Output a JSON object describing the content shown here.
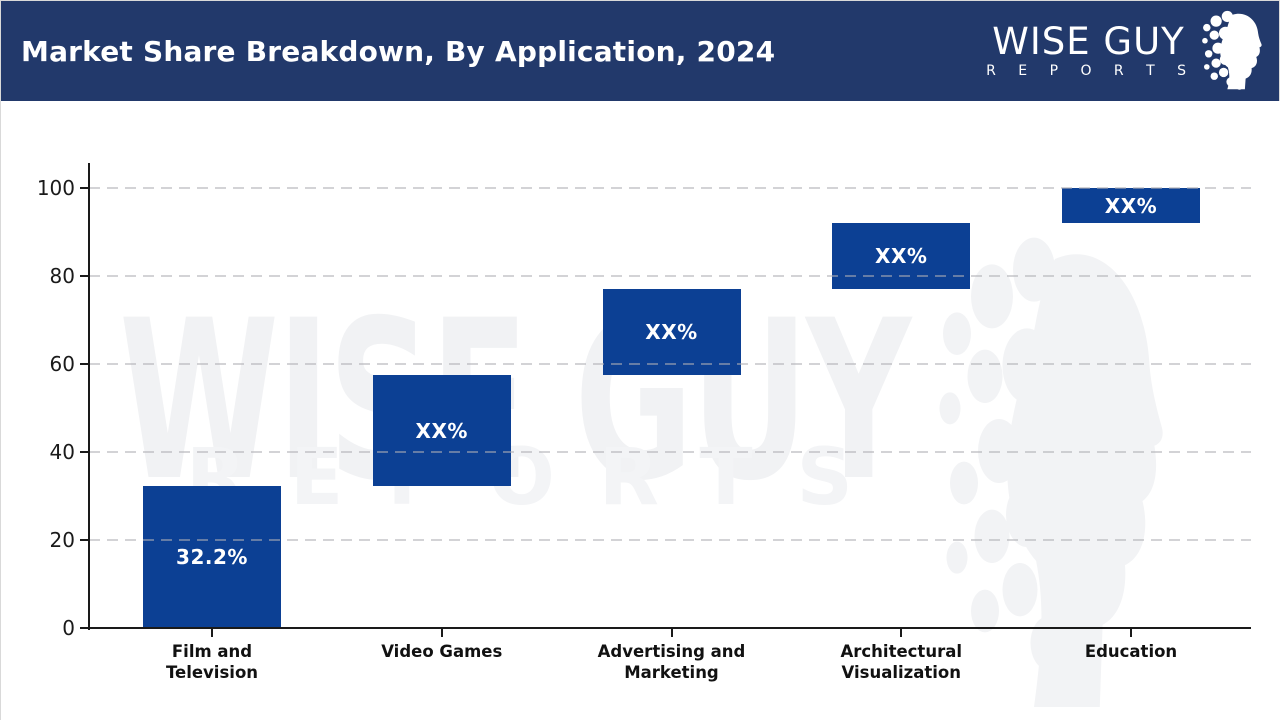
{
  "header": {
    "title": "Market Share Breakdown, By Application, 2024",
    "logo_line1": "WISE GUY",
    "logo_line2": "R E P O R T S",
    "bg_color": "#22396b"
  },
  "watermark": {
    "line1": "WISE GUY",
    "line2": "REPORTS"
  },
  "icons": {
    "logo_head": "dotted-head-profile-icon"
  },
  "chart_data": {
    "type": "bar",
    "subtype": "waterfall",
    "title": "Market Share Breakdown, By Application, 2024",
    "xlabel": "",
    "ylabel": "",
    "ylim": [
      0,
      106
    ],
    "yticks": [
      0,
      20,
      40,
      60,
      80,
      100
    ],
    "grid": "horizontal-dashed",
    "legend": "none",
    "bar_color": "#0c4094",
    "label_color": "#ffffff",
    "categories": [
      "Film and Television",
      "Video Games",
      "Advertising and Marketing",
      "Architectural Visualization",
      "Education"
    ],
    "category_label_lines": [
      [
        "Film and",
        "Television"
      ],
      [
        "Video Games"
      ],
      [
        "Advertising and",
        "Marketing"
      ],
      [
        "Architectural",
        "Visualization"
      ],
      [
        "Education"
      ]
    ],
    "segments": [
      {
        "category": "Film and Television",
        "start": 0,
        "end": 32.2,
        "value": 32.2,
        "label": "32.2%"
      },
      {
        "category": "Video Games",
        "start": 32.2,
        "end": 57.5,
        "value": 25.3,
        "label": "XX%"
      },
      {
        "category": "Advertising and Marketing",
        "start": 57.5,
        "end": 77,
        "value": 19.5,
        "label": "XX%"
      },
      {
        "category": "Architectural Visualization",
        "start": 77,
        "end": 92,
        "value": 15,
        "label": "XX%"
      },
      {
        "category": "Education",
        "start": 92,
        "end": 100,
        "value": 8,
        "label": "XX%"
      }
    ]
  }
}
